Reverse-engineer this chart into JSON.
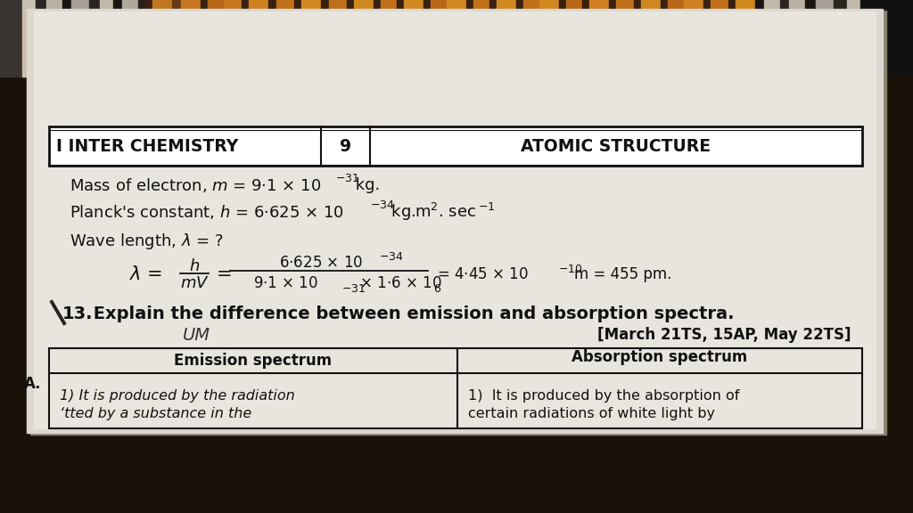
{
  "bg_dark": "#1a1008",
  "stripe_colors": [
    "#2a1a08",
    "#5a3a10",
    "#8a5a18",
    "#c87820",
    "#8a5a18",
    "#5a3a10"
  ],
  "paper_light": "#e8e4dc",
  "paper_white": "#f0ede8",
  "header_border": "#111111",
  "text_color": "#111111",
  "title_left": "I INTER CHEMISTRY",
  "title_num": "9",
  "title_right": "ATOMIC STRUCTURE",
  "table_header_left": "Emission spectrum",
  "table_header_right": "Absorption spectrum",
  "table_label": "A.",
  "table_row1_left": "1) It is produced by the radiation",
  "table_row1_left2": "‘tted by a substance in the",
  "table_row1_right": "1)  It is produced by the absorption of",
  "table_row1_right2": "certain radiations of white light by",
  "q13_mark": "[March 21TS, 15AP, May 22TS]"
}
